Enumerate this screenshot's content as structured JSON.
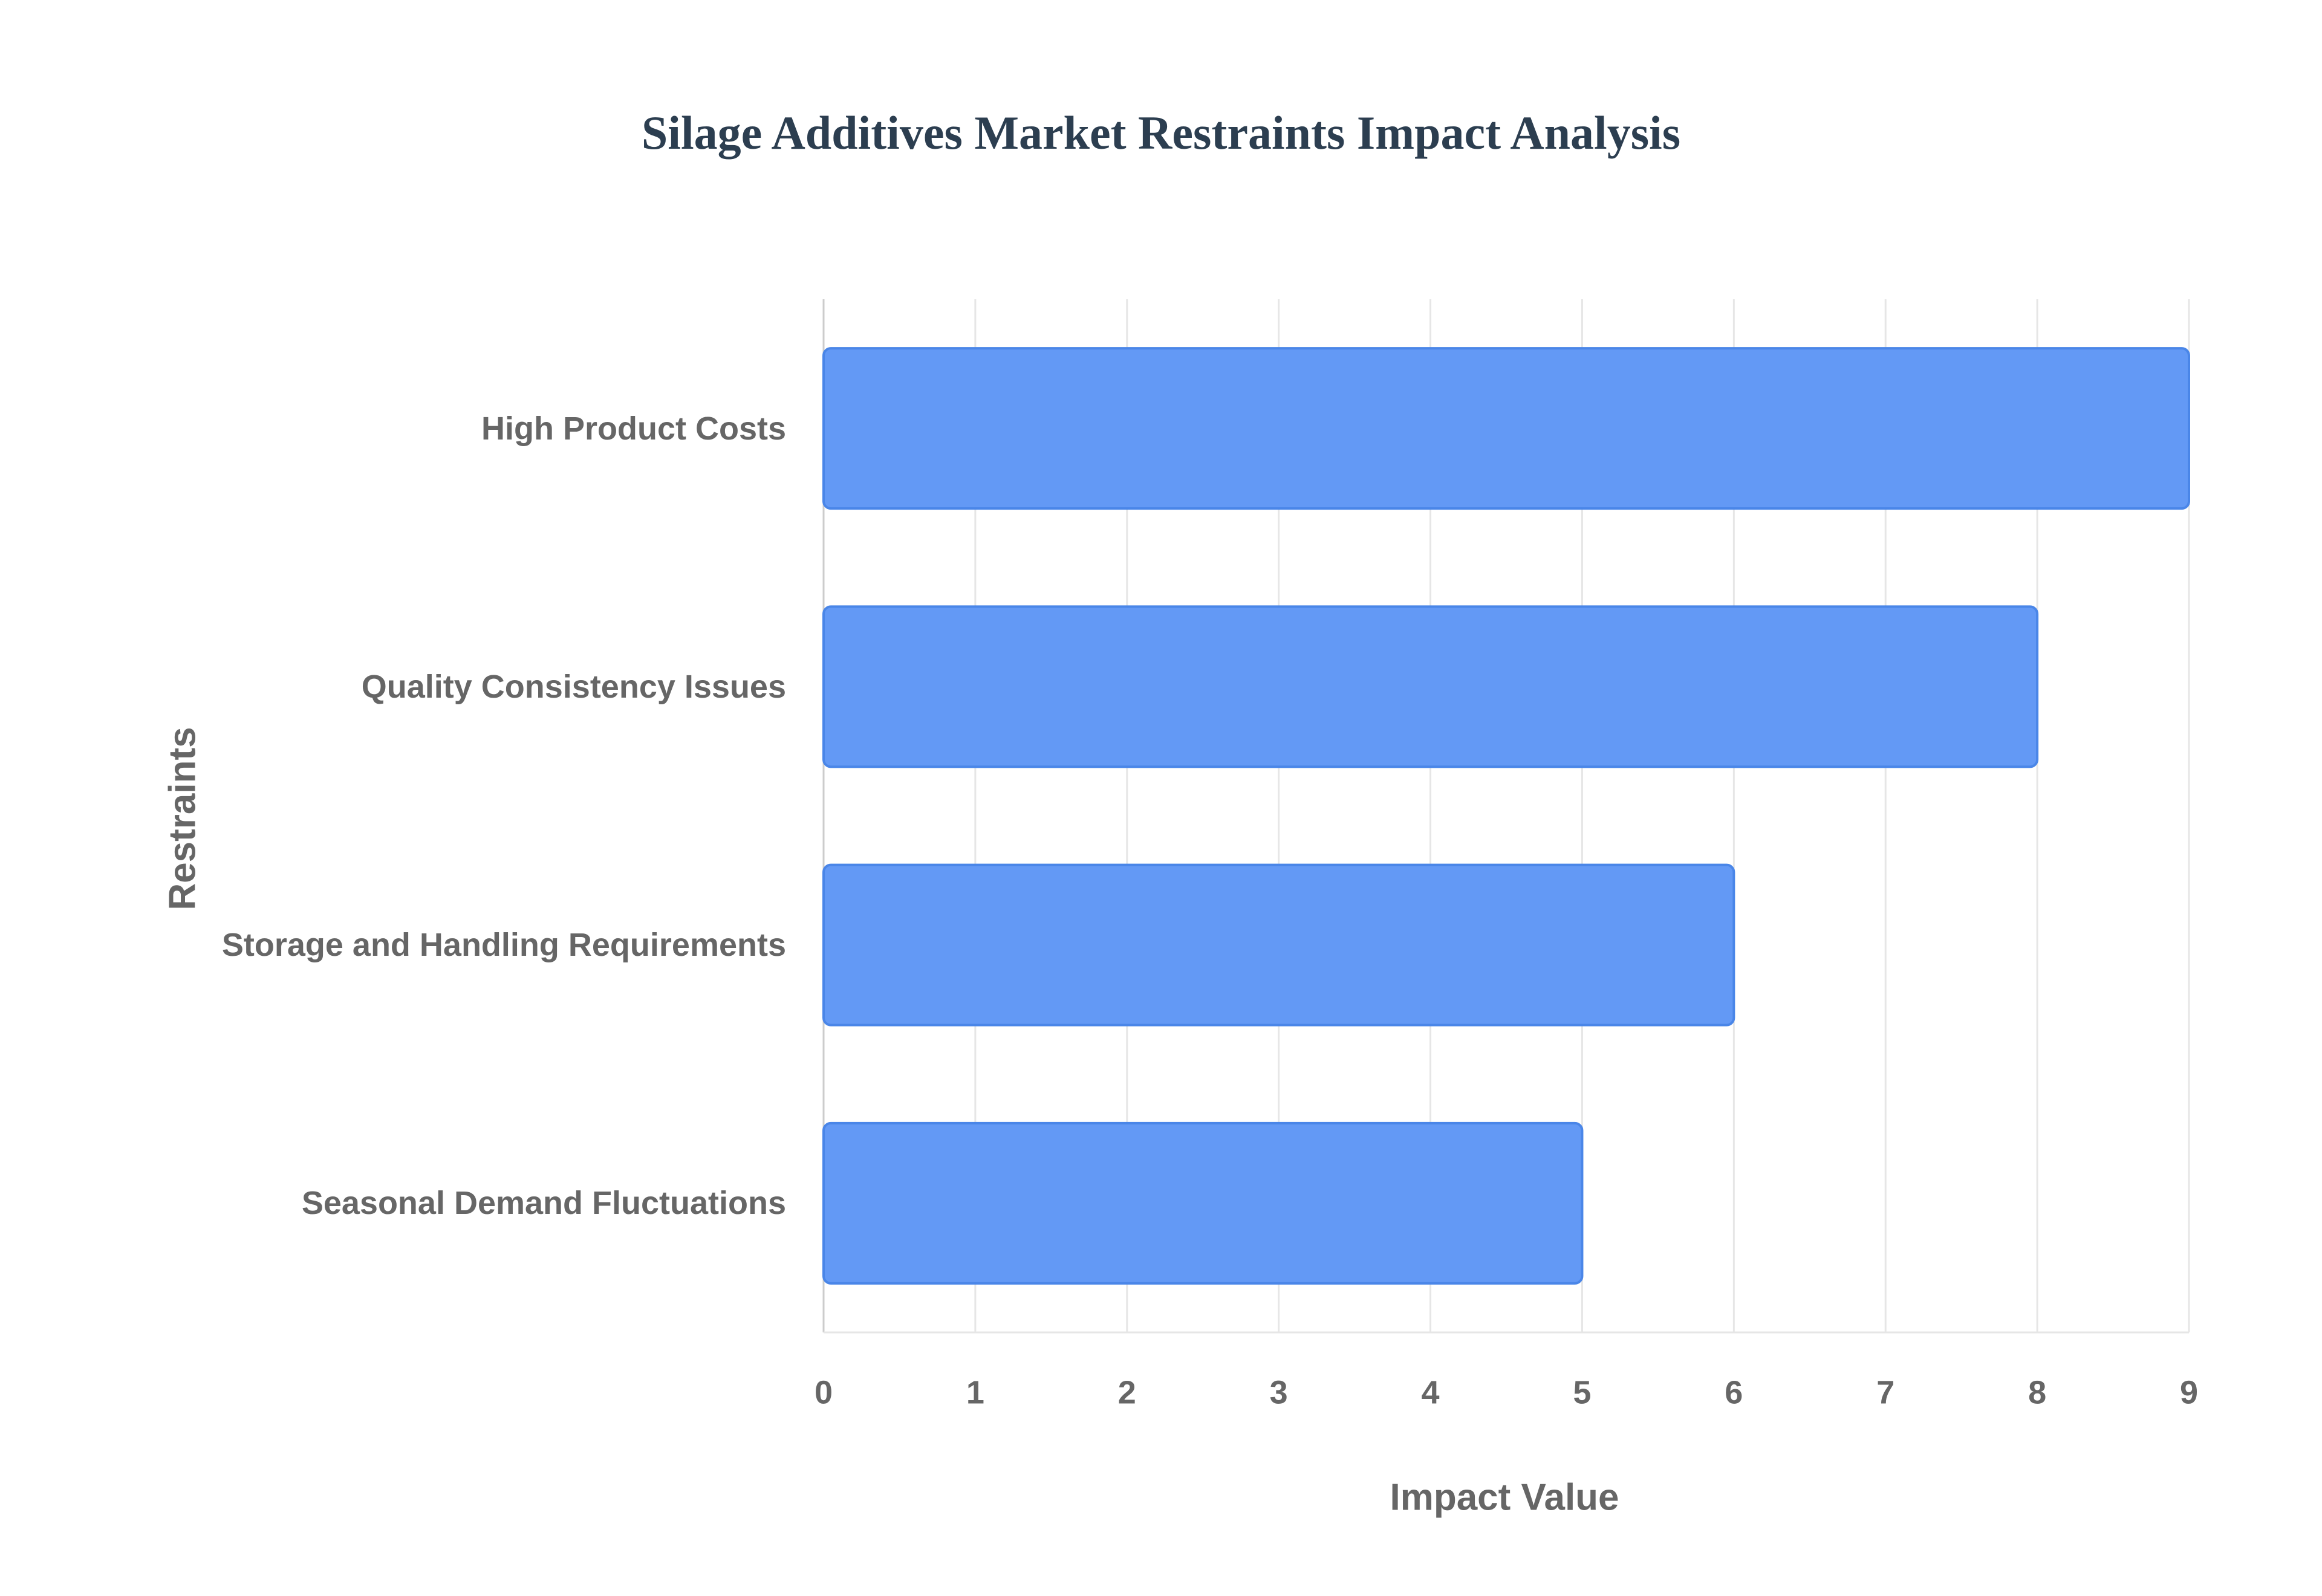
{
  "chart_data": {
    "type": "bar",
    "orientation": "horizontal",
    "title": "Silage Additives Market Restraints Impact Analysis",
    "x_label": "Impact Value",
    "y_label": "Restraints",
    "categories": [
      "High Product Costs",
      "Quality Consistency Issues",
      "Storage and Handling Requirements",
      "Seasonal Demand Fluctuations"
    ],
    "values": [
      9,
      8,
      6,
      5
    ],
    "color": "#6399f5",
    "xlim": [
      0,
      9
    ],
    "xticks": [
      0,
      1,
      2,
      3,
      4,
      5,
      6,
      7,
      8,
      9
    ],
    "grid": true
  }
}
